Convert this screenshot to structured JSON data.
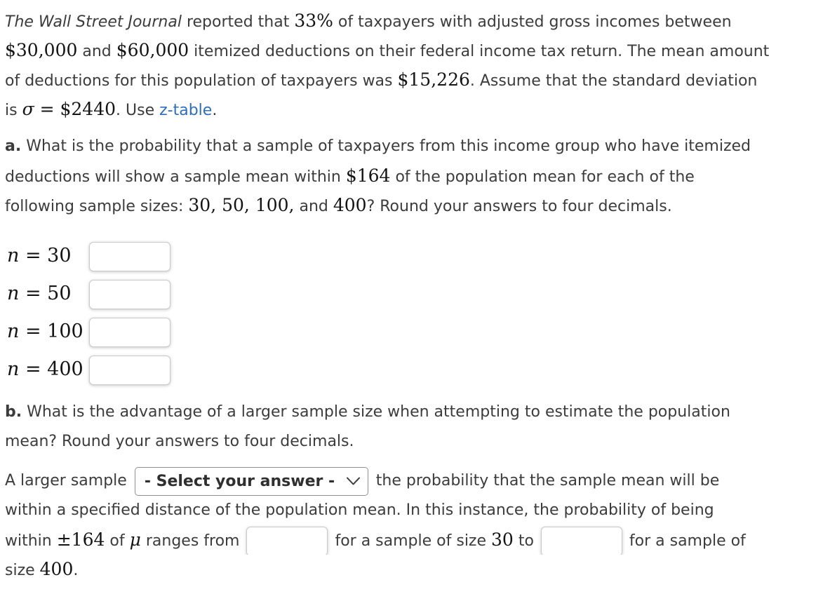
{
  "page": {
    "colors": {
      "background": "#ffffff",
      "text": "#3c3c3c",
      "math_text": "#141414",
      "link": "#2e6fbd",
      "input_border": "#cacaca",
      "select_border": "#919191"
    }
  },
  "select": {
    "name": "larger-sample-select",
    "value": "- Select your answer -",
    "options": [
      "- Select your answer -"
    ],
    "chevron_icon": "chevron-down-icon"
  },
  "sections": [
    {
      "name": "intro",
      "type": "paragraph",
      "lines": [
        [
          {
            "type": "italic",
            "text": "The Wall Street Journal"
          },
          {
            "type": "normal",
            "text": " reported that "
          },
          {
            "type": "math",
            "text": "33%"
          },
          {
            "type": "normal",
            "text": " of taxpayers with adjusted gross incomes between"
          }
        ],
        [
          {
            "type": "math",
            "text": "$30,000"
          },
          {
            "type": "normal",
            "text": " and "
          },
          {
            "type": "math",
            "text": "$60,000"
          },
          {
            "type": "normal",
            "text": " itemized deductions on their federal income tax return. The mean amount"
          }
        ],
        [
          {
            "type": "normal",
            "text": "of deductions for this population of taxpayers was "
          },
          {
            "type": "math",
            "text": "$15,226"
          },
          {
            "type": "normal",
            "text": ". Assume that the standard deviation"
          }
        ],
        [
          {
            "type": "normal",
            "text": "is "
          },
          {
            "type": "mathit",
            "text": "σ"
          },
          {
            "type": "math",
            "text": " = $2440"
          },
          {
            "type": "normal",
            "text": ". Use "
          },
          {
            "type": "link",
            "text": "z-table",
            "name": "z-table-link"
          },
          {
            "type": "normal",
            "text": "."
          }
        ]
      ]
    },
    {
      "name": "part-a",
      "type": "paragraph",
      "lines": [
        [
          {
            "type": "bold",
            "text": "a."
          },
          {
            "type": "normal",
            "text": " What is the probability that a sample of taxpayers from this income group who have itemized"
          }
        ],
        [
          {
            "type": "normal",
            "text": "deductions will show a sample mean within "
          },
          {
            "type": "math",
            "text": "$164"
          },
          {
            "type": "normal",
            "text": " of the population mean for each of the"
          }
        ],
        [
          {
            "type": "normal",
            "text": "following sample sizes: "
          },
          {
            "type": "math",
            "text": "30, 50, 100,"
          },
          {
            "type": "normal",
            "text": " and "
          },
          {
            "type": "math",
            "text": "400"
          },
          {
            "type": "normal",
            "text": "? Round your answers to four decimals."
          }
        ]
      ]
    },
    {
      "name": "part-a-answers",
      "type": "answer-rows",
      "rows": [
        {
          "label": [
            {
              "type": "mathit",
              "text": "n"
            },
            {
              "type": "math",
              "text": " = 30"
            }
          ],
          "input": {
            "name": "n30-answer-input",
            "value": "",
            "placeholder": ""
          }
        },
        {
          "label": [
            {
              "type": "mathit",
              "text": "n"
            },
            {
              "type": "math",
              "text": " = 50"
            }
          ],
          "input": {
            "name": "n50-answer-input",
            "value": "",
            "placeholder": ""
          }
        },
        {
          "label": [
            {
              "type": "mathit",
              "text": "n"
            },
            {
              "type": "math",
              "text": " = 100"
            }
          ],
          "input": {
            "name": "n100-answer-input",
            "value": "",
            "placeholder": ""
          }
        },
        {
          "label": [
            {
              "type": "mathit",
              "text": "n"
            },
            {
              "type": "math",
              "text": " = 400"
            }
          ],
          "input": {
            "name": "n400-answer-input",
            "value": "",
            "placeholder": ""
          }
        }
      ]
    },
    {
      "name": "part-b",
      "type": "paragraph",
      "lines": [
        [
          {
            "type": "bold",
            "text": "b."
          },
          {
            "type": "normal",
            "text": " What is the advantage of a larger sample size when attempting to estimate the population"
          }
        ],
        [
          {
            "type": "normal",
            "text": "mean? Round your answers to four decimals."
          }
        ]
      ]
    },
    {
      "name": "part-b-answer",
      "type": "paragraph",
      "lines": [
        [
          {
            "type": "normal",
            "text": "A larger sample "
          },
          {
            "type": "select"
          },
          {
            "type": "normal",
            "text": " the probability that the sample mean will be"
          }
        ],
        [
          {
            "type": "normal",
            "text": "within a specified distance of the population mean. In this instance, the probability of being"
          }
        ],
        [
          {
            "type": "normal",
            "text": "within "
          },
          {
            "type": "math",
            "text": "±164"
          },
          {
            "type": "normal",
            "text": " of "
          },
          {
            "type": "mathit",
            "text": "μ"
          },
          {
            "type": "normal",
            "text": " ranges from "
          },
          {
            "type": "input",
            "name": "prob-n30-input",
            "value": "",
            "placeholder": ""
          },
          {
            "type": "normal",
            "text": " for a sample of size "
          },
          {
            "type": "math",
            "text": "30"
          },
          {
            "type": "normal",
            "text": " to "
          },
          {
            "type": "input",
            "name": "prob-n400-input",
            "value": "",
            "placeholder": ""
          },
          {
            "type": "normal",
            "text": " for a sample of"
          }
        ],
        [
          {
            "type": "normal",
            "text": "size "
          },
          {
            "type": "math",
            "text": "400"
          },
          {
            "type": "normal",
            "text": "."
          }
        ]
      ]
    }
  ]
}
